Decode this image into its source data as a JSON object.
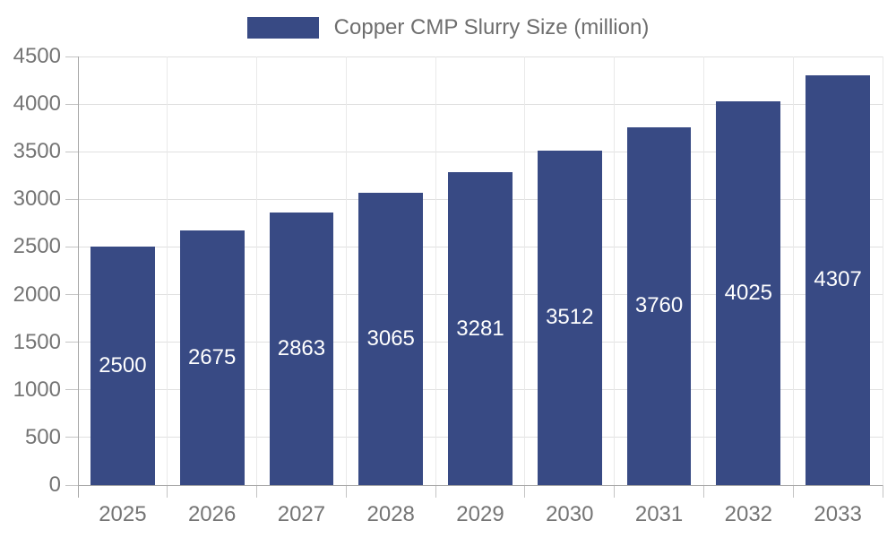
{
  "chart_data": {
    "type": "bar",
    "legend": "Copper CMP Slurry Size (million)",
    "series": [
      {
        "name": "Copper CMP Slurry Size (million)",
        "values": [
          2500,
          2675,
          2863,
          3065,
          3281,
          3512,
          3760,
          4025,
          4307
        ]
      }
    ],
    "categories": [
      "2025",
      "2026",
      "2027",
      "2028",
      "2029",
      "2030",
      "2031",
      "2032",
      "2033"
    ],
    "data_labels": [
      "2500",
      "2675",
      "2863",
      "3065",
      "3281",
      "3512",
      "3760",
      "4025",
      "4307"
    ],
    "title": "",
    "xlabel": "",
    "ylabel": "",
    "ylim": [
      0,
      4500
    ],
    "ytick_step": 500,
    "yticks": [
      0,
      500,
      1000,
      1500,
      2000,
      2500,
      3000,
      3500,
      4000,
      4500
    ],
    "grid": true,
    "legend_position": "top-center",
    "data_label_position": "inside-center"
  },
  "colors": {
    "bar": "#384a84",
    "background": "#ffffff",
    "axis_line": "#a6a6a6",
    "tick": "#c4c4c4",
    "gridline_h": "#e0e0e0",
    "gridline_v": "#e9e9e9",
    "axis_label": "#757575",
    "legend_text": "#6e6e6e",
    "data_label": "#ffffff"
  }
}
